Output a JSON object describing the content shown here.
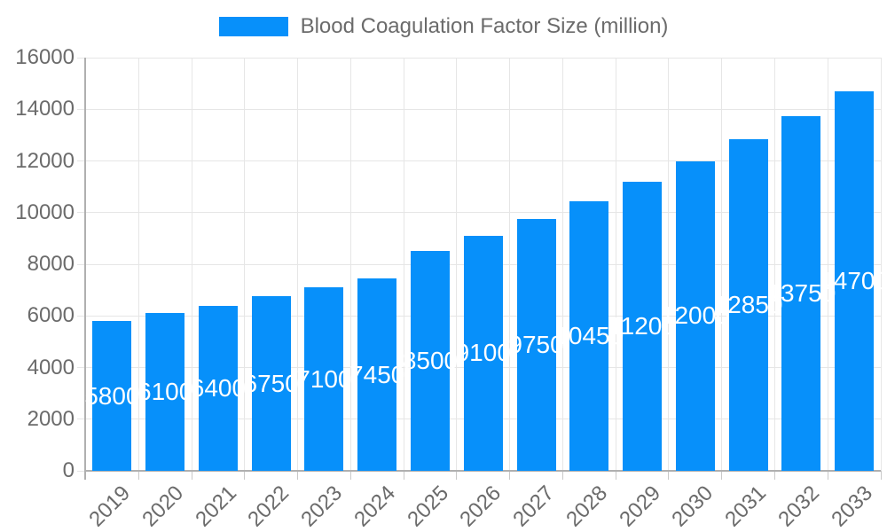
{
  "legend": {
    "position": "top",
    "label": "Blood Coagulation Factor Size (million)"
  },
  "chart_data": {
    "type": "bar",
    "title": "Blood Coagulation Factor Size (million)",
    "xlabel": "",
    "ylabel": "",
    "categories": [
      "2019",
      "2020",
      "2021",
      "2022",
      "2023",
      "2024",
      "2025",
      "2026",
      "2027",
      "2028",
      "2029",
      "2030",
      "2031",
      "2032",
      "2033"
    ],
    "values": [
      5800,
      6100,
      6400,
      6750,
      7100,
      7450,
      8500,
      9100,
      9750,
      10450,
      11200,
      12000,
      12850,
      13750,
      14700
    ],
    "series_name": "Blood Coagulation Factor Size (million)",
    "ylim": [
      0,
      16000
    ],
    "yticks": [
      0,
      2000,
      4000,
      6000,
      8000,
      10000,
      12000,
      14000,
      16000
    ],
    "grid": true,
    "bar_label_position": "center",
    "x_label_rotation": -45,
    "colors": {
      "bar": "#0790fa",
      "bar_label": "#ffffff",
      "axis_text": "#6b6b6b",
      "legend_text": "#6b6b6b",
      "gridline": "#e6e6e6",
      "axis_line": "#b0b0b0",
      "tick": "#c9c9c9"
    }
  }
}
